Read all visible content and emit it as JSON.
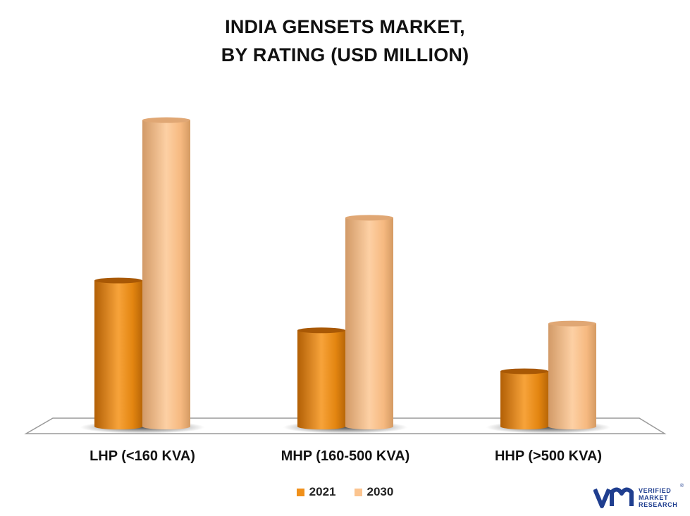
{
  "title_lines": [
    "INDIA GENSETS MARKET,",
    "BY RATING (USD MILLION)"
  ],
  "chart_data": {
    "type": "bar",
    "title": "INDIA GENSETS MARKET, BY RATING (USD MILLION)",
    "categories": [
      "LHP (<160 KVA)",
      "MHP (160-500 KVA)",
      "HHP (>500 KVA)"
    ],
    "series": [
      {
        "name": "2021",
        "values": [
          214,
          141,
          81
        ],
        "color": "#f0901a"
      },
      {
        "name": "2030",
        "values": [
          449,
          306,
          151
        ],
        "color": "#fbc48f"
      }
    ],
    "ylim": [
      0,
      460
    ],
    "grid": false,
    "legend": "bottom-center",
    "style": "3d-cylinder"
  },
  "legend": [
    {
      "label": "2021",
      "color": "#f0901a"
    },
    {
      "label": "2030",
      "color": "#fbc48f"
    }
  ],
  "logo": {
    "line1": "VERIFIED",
    "line2": "MARKET",
    "line3": "RESEARCH",
    "reg": "®"
  }
}
